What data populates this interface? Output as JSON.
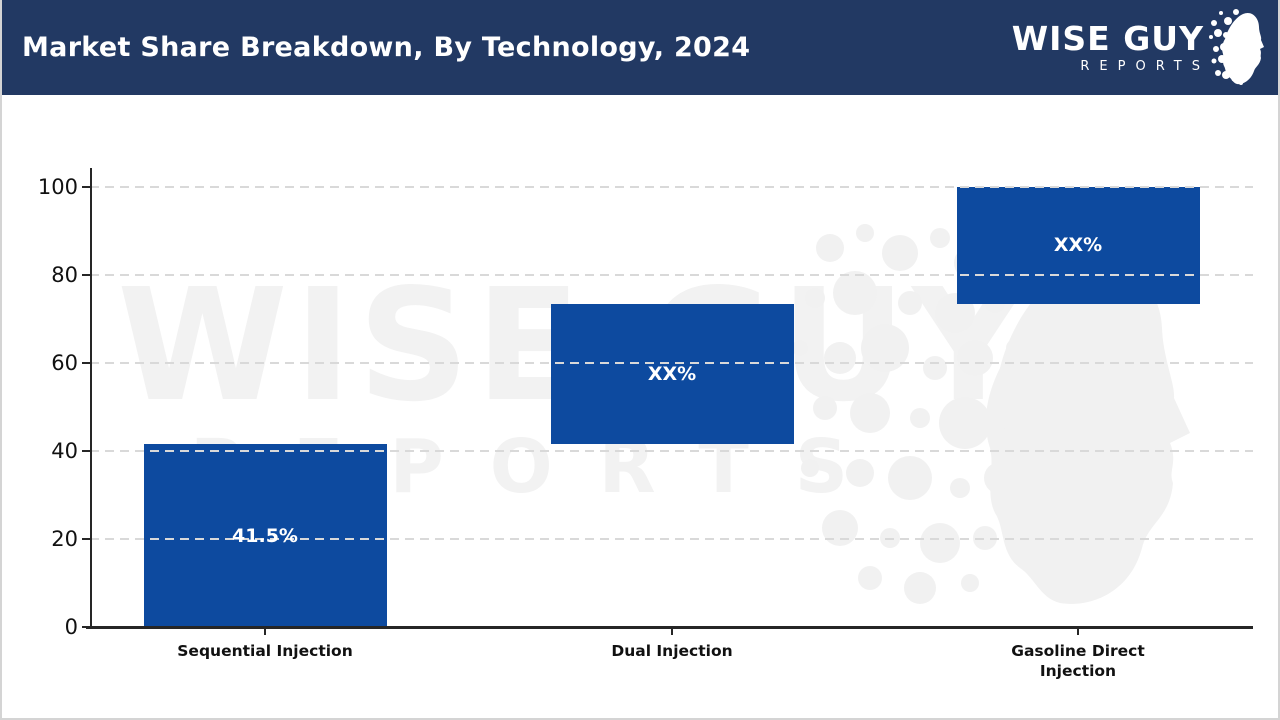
{
  "header": {
    "title": "Market Share Breakdown, By Technology, 2024",
    "logo": {
      "line1": "WISE GUY",
      "line2": "REPORTS"
    }
  },
  "watermark": {
    "line1": "WISE GUY",
    "line2": "REPORTS"
  },
  "chart_data": {
    "type": "bar",
    "variant": "floating-segment bars (waterfall-style market share breakdown)",
    "title": "Market Share Breakdown, By Technology, 2024",
    "categories": [
      "Sequential Injection",
      "Dual Injection",
      "Gasoline Direct Injection"
    ],
    "series": [
      {
        "name": "Market share (%)",
        "segments": [
          {
            "category": "Sequential Injection",
            "from": 0,
            "to": 41.5,
            "label": "41.5%"
          },
          {
            "category": "Dual Injection",
            "from": 41.5,
            "to": 73.5,
            "label": "XX%"
          },
          {
            "category": "Gasoline Direct Injection",
            "from": 73.5,
            "to": 100,
            "label": "XX%"
          }
        ]
      }
    ],
    "xlabel": "",
    "ylabel": "",
    "y_ticks": [
      0,
      20,
      40,
      60,
      80,
      100
    ],
    "ylim": [
      0,
      104
    ],
    "grid": "horizontal dashed, drawn above bars",
    "legend": "none",
    "colors": {
      "bar": "#0d4a9f",
      "bar_label": "#ffffff",
      "grid": "#d9d9d9",
      "axis": "#262626",
      "tick_label": "#111111",
      "header_bg": "#223963",
      "header_text": "#ffffff",
      "watermark": "#f2f2f2",
      "page_border": "#d4d4d4"
    }
  }
}
